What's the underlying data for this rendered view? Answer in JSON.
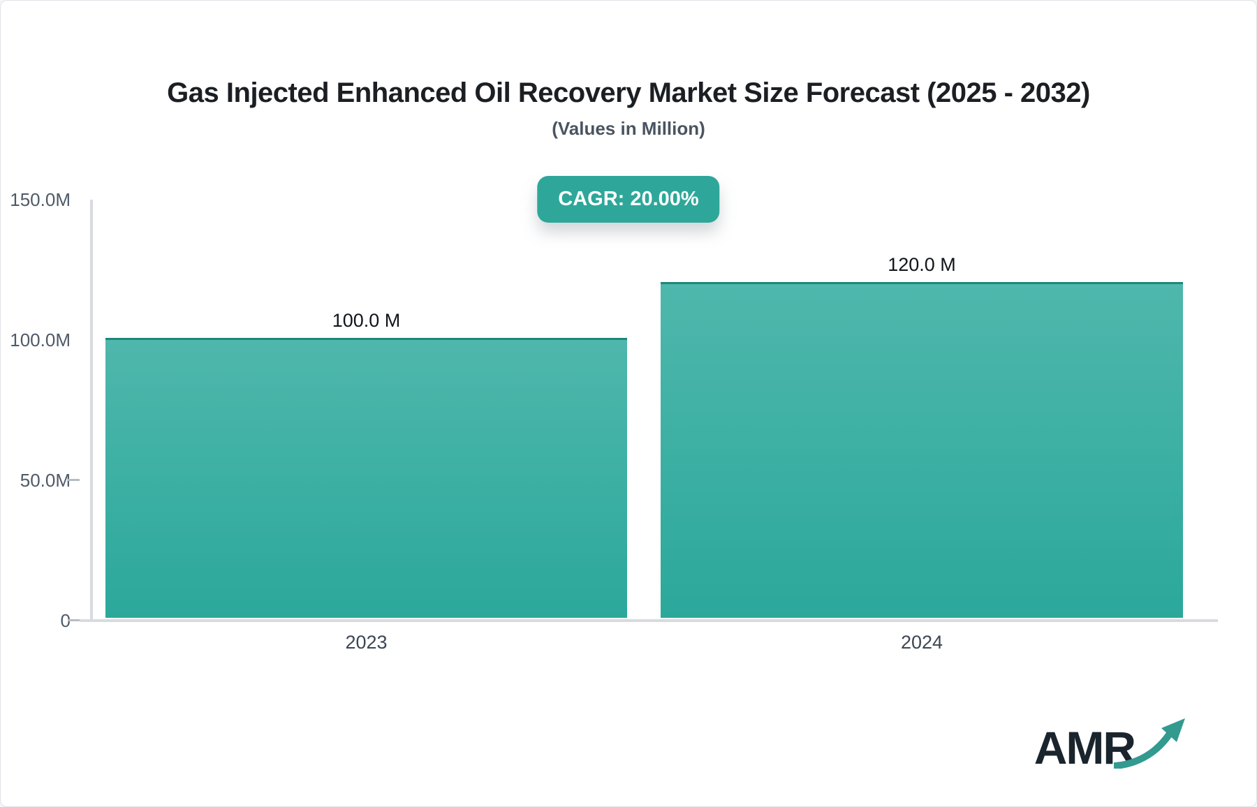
{
  "page": {
    "title": "Gas Injected Enhanced Oil Recovery Market Size Forecast (2025 - 2032)",
    "subtitle": "(Values in Million)",
    "cagr_badge": "CAGR: 20.00%",
    "logo_text": "AMR"
  },
  "colors": {
    "accent_teal": "#2ea79a",
    "bar_gradient_top": "#4fb7ac",
    "bar_gradient_bottom": "#2ba89b",
    "bar_top_edge": "#1e867b",
    "axis_line": "#d7dadf",
    "title_text": "#1b1f24",
    "subtitle_text": "#4a5460",
    "axis_label_text": "#4f5a67",
    "logo_text": "#1a242d"
  },
  "chart_data": {
    "type": "bar",
    "title": "Gas Injected Enhanced Oil Recovery Market Size Forecast (2025 - 2032)",
    "subtitle": "(Values in Million)",
    "unit": "Million",
    "cagr_label": "CAGR: 20.00%",
    "cagr_percent": 20.0,
    "categories": [
      "2023",
      "2024"
    ],
    "values": [
      100.0,
      120.0
    ],
    "value_labels": [
      "100.0 M",
      "120.0 M"
    ],
    "y_ticks": [
      {
        "label": "150.0M",
        "value": 150,
        "dash_visible": false
      },
      {
        "label": "100.0M",
        "value": 100,
        "dash_visible": false
      },
      {
        "label": "50.0M",
        "value": 50,
        "dash_visible": true
      },
      {
        "label": "0",
        "value": 0,
        "dash_visible": true
      }
    ],
    "ylim": [
      0,
      150
    ],
    "grid": false,
    "legend_position": "none"
  }
}
